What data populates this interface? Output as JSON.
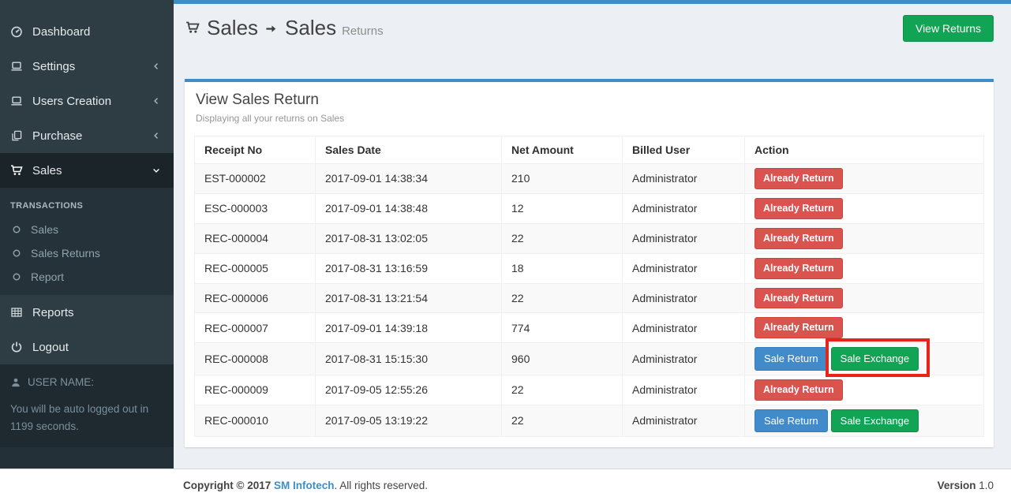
{
  "colors": {
    "topbar_blue": "#3d8ec7",
    "sidebar_bg": "#2e3d44",
    "sidebar_active_bg": "#1b2529",
    "submenu_bg": "#263239",
    "content_bg": "#ecf0f5",
    "green_button": "#12a455",
    "blue_button": "#428bca",
    "danger_badge": "#d9534f",
    "annotation_red": "#e8231a"
  },
  "sidebar": {
    "items": [
      {
        "label": "Dashboard",
        "icon": "gauge-icon"
      },
      {
        "label": "Settings",
        "icon": "laptop-icon",
        "chevron": "left"
      },
      {
        "label": "Users Creation",
        "icon": "laptop-icon",
        "chevron": "left"
      },
      {
        "label": "Purchase",
        "icon": "copy-icon",
        "chevron": "left"
      },
      {
        "label": "Sales",
        "icon": "cart-icon",
        "chevron": "down",
        "active": true
      }
    ],
    "section_label": "TRANSACTIONS",
    "submenu": [
      {
        "label": "Sales"
      },
      {
        "label": "Sales Returns"
      },
      {
        "label": "Report"
      }
    ],
    "bottom_items": [
      {
        "label": "Reports",
        "icon": "table-icon"
      },
      {
        "label": "Logout",
        "icon": "power-icon"
      }
    ],
    "user_label": "USER NAME:",
    "logout_note": "You will be auto logged out in 1199 seconds."
  },
  "header": {
    "breadcrumb_root": "Sales",
    "breadcrumb_current": "Sales",
    "breadcrumb_sub": "Returns",
    "view_returns_button": "View Returns"
  },
  "panel": {
    "title": "View Sales Return",
    "subtitle": "Displaying all your returns on Sales"
  },
  "table": {
    "columns": [
      "Receipt No",
      "Sales Date",
      "Net Amount",
      "Billed User",
      "Action"
    ],
    "rows": [
      {
        "receipt_no": "EST-000002",
        "sales_date": "2017-09-01 14:38:34",
        "net_amount": "210",
        "billed_user": "Administrator",
        "actions": [
          {
            "label": "Already Return",
            "style": "danger"
          }
        ]
      },
      {
        "receipt_no": "ESC-000003",
        "sales_date": "2017-09-01 14:38:48",
        "net_amount": "12",
        "billed_user": "Administrator",
        "actions": [
          {
            "label": "Already Return",
            "style": "danger"
          }
        ]
      },
      {
        "receipt_no": "REC-000004",
        "sales_date": "2017-08-31 13:02:05",
        "net_amount": "22",
        "billed_user": "Administrator",
        "actions": [
          {
            "label": "Already Return",
            "style": "danger"
          }
        ]
      },
      {
        "receipt_no": "REC-000005",
        "sales_date": "2017-08-31 13:16:59",
        "net_amount": "18",
        "billed_user": "Administrator",
        "actions": [
          {
            "label": "Already Return",
            "style": "danger"
          }
        ]
      },
      {
        "receipt_no": "REC-000006",
        "sales_date": "2017-08-31 13:21:54",
        "net_amount": "22",
        "billed_user": "Administrator",
        "actions": [
          {
            "label": "Already Return",
            "style": "danger"
          }
        ]
      },
      {
        "receipt_no": "REC-000007",
        "sales_date": "2017-09-01 14:39:18",
        "net_amount": "774",
        "billed_user": "Administrator",
        "actions": [
          {
            "label": "Already Return",
            "style": "danger"
          }
        ]
      },
      {
        "receipt_no": "REC-000008",
        "sales_date": "2017-08-31 15:15:30",
        "net_amount": "960",
        "billed_user": "Administrator",
        "actions": [
          {
            "label": "Sale Return",
            "style": "primary"
          },
          {
            "label": "Sale Exchange",
            "style": "success",
            "highlighted": true
          }
        ]
      },
      {
        "receipt_no": "REC-000009",
        "sales_date": "2017-09-05 12:55:26",
        "net_amount": "22",
        "billed_user": "Administrator",
        "actions": [
          {
            "label": "Already Return",
            "style": "danger"
          }
        ]
      },
      {
        "receipt_no": "REC-000010",
        "sales_date": "2017-09-05 13:19:22",
        "net_amount": "22",
        "billed_user": "Administrator",
        "actions": [
          {
            "label": "Sale Return",
            "style": "primary"
          },
          {
            "label": "Sale Exchange",
            "style": "success"
          }
        ]
      }
    ]
  },
  "footer": {
    "copyright_prefix": "Copyright © 2017",
    "company": "SM Infotech",
    "copyright_suffix": ". All rights reserved.",
    "version_label": "Version",
    "version_value": "1.0"
  }
}
